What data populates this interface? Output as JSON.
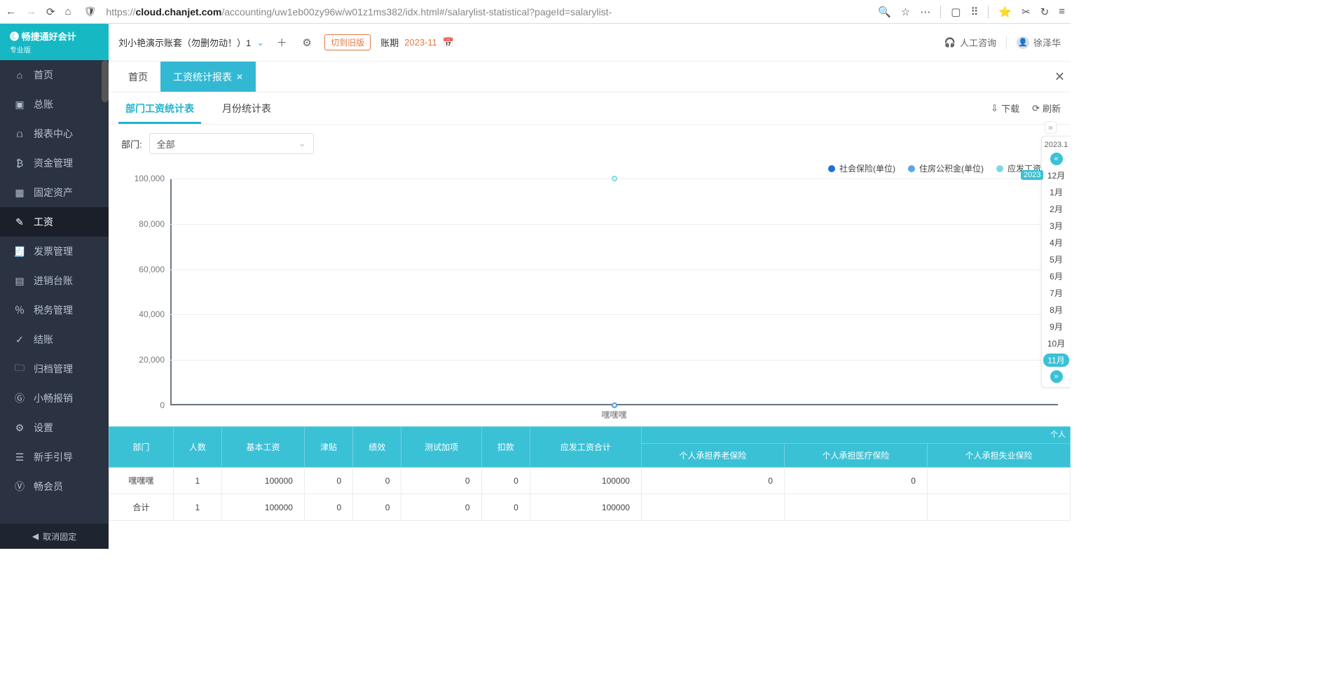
{
  "browser": {
    "url_prefix": "https://",
    "url_bold": "cloud.chanjet.com",
    "url_rest": "/accounting/uw1eb00zy96w/w01z1ms382/idx.html#/salarylist-statistical?pageId=salarylist-"
  },
  "app": {
    "logo": "畅捷通好会计",
    "logo_sub": "专业版",
    "sidebar": [
      {
        "icon": "⌂",
        "label": "首页"
      },
      {
        "icon": "▣",
        "label": "总账"
      },
      {
        "icon": "⩍",
        "label": "报表中心"
      },
      {
        "icon": "₿",
        "label": "资金管理"
      },
      {
        "icon": "▦",
        "label": "固定资产"
      },
      {
        "icon": "✎",
        "label": "工资"
      },
      {
        "icon": "🧾",
        "label": "发票管理"
      },
      {
        "icon": "▤",
        "label": "进销台账"
      },
      {
        "icon": "％",
        "label": "税务管理"
      },
      {
        "icon": "✓",
        "label": "结账"
      },
      {
        "icon": "🗀",
        "label": "归档管理"
      },
      {
        "icon": "Ⓖ",
        "label": "小畅报销"
      },
      {
        "icon": "⚙",
        "label": "设置"
      },
      {
        "icon": "☰",
        "label": "新手引导"
      },
      {
        "icon": "Ⓥ",
        "label": "畅会员"
      }
    ],
    "side_foot": "取消固定",
    "account_name": "刘小艳演示账套（勿删勿动！）1",
    "old_version": "切到旧版",
    "period_label": "账期",
    "period_value": "2023-11",
    "customer_service": "人工咨询",
    "user_name": "徐泽华",
    "tabs": {
      "home": "首页",
      "active": "工资统计报表"
    },
    "subtabs": {
      "dept": "部门工资统计表",
      "month": "月份统计表"
    },
    "actions": {
      "download": "下载",
      "refresh": "刷新"
    },
    "filter": {
      "label": "部门:",
      "value": "全部"
    },
    "chart": {
      "legend": [
        {
          "label": "社会保险(单位)",
          "color": "#1f6fd8"
        },
        {
          "label": "住房公积金(单位)",
          "color": "#5aa6e6"
        },
        {
          "label": "应发工资总额",
          "color": "#7fd7e6"
        }
      ],
      "ymax": 100000,
      "yticks": [
        {
          "v": 100000,
          "label": "100,000"
        },
        {
          "v": 80000,
          "label": "80,000"
        },
        {
          "v": 60000,
          "label": "60,000"
        },
        {
          "v": 40000,
          "label": "40,000"
        },
        {
          "v": 20000,
          "label": "20,000"
        },
        {
          "v": 0,
          "label": "0"
        }
      ],
      "x_label": "嘿嘿嘿",
      "points": [
        {
          "series": 2,
          "x": 0.5,
          "y": 100000
        },
        {
          "series": 0,
          "x": 0.5,
          "y": 0
        },
        {
          "series": 1,
          "x": 0.5,
          "y": 0
        }
      ],
      "axis_color": "#6d7783",
      "grid_color": "#eceef1",
      "background_color": "#ffffff"
    },
    "table": {
      "group_header": "个人",
      "columns_main": [
        "部门",
        "人数",
        "基本工资",
        "津贴",
        "绩效",
        "测试加项",
        "扣款",
        "应发工资合计"
      ],
      "columns_personal": [
        "个人承担养老保险",
        "个人承担医疗保险",
        "个人承担失业保险"
      ],
      "rows": [
        {
          "dept": "嘿嘿嘿",
          "count": "1",
          "base": "100000",
          "allow": "0",
          "perf": "0",
          "test": "0",
          "deduct": "0",
          "payable": "100000",
          "p1": "0",
          "p2": "0",
          "p3": ""
        },
        {
          "dept": "合计",
          "count": "1",
          "base": "100000",
          "allow": "0",
          "perf": "0",
          "test": "0",
          "deduct": "0",
          "payable": "100000",
          "p1": "",
          "p2": "",
          "p3": ""
        }
      ]
    },
    "months": {
      "header": "2023.1",
      "year_badge": "2023",
      "list": [
        "12月",
        "1月",
        "2月",
        "3月",
        "4月",
        "5月",
        "6月",
        "7月",
        "8月",
        "9月",
        "10月",
        "11月"
      ],
      "active": "11月"
    }
  }
}
